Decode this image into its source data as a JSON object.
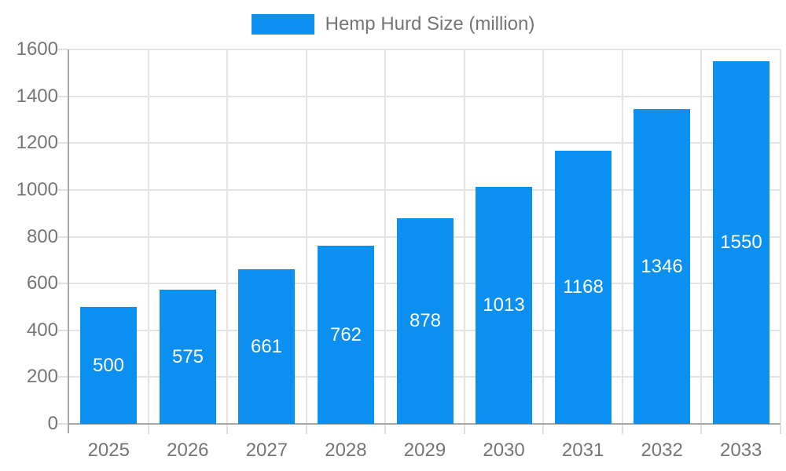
{
  "legend": {
    "label": "Hemp Hurd Size (million)"
  },
  "chart_data": {
    "type": "bar",
    "title": "Hemp Hurd Size (million)",
    "categories": [
      "2025",
      "2026",
      "2027",
      "2028",
      "2029",
      "2030",
      "2031",
      "2032",
      "2033"
    ],
    "values": [
      500,
      575,
      661,
      762,
      878,
      1013,
      1168,
      1346,
      1550
    ],
    "bar_labels": [
      "500",
      "575",
      "661",
      "762",
      "878",
      "1013",
      "1168",
      "1346",
      "1550"
    ],
    "xlabel": "",
    "ylabel": "",
    "ylim": [
      0,
      1600
    ],
    "yticks": [
      0,
      200,
      400,
      600,
      800,
      1000,
      1200,
      1400,
      1600
    ],
    "grid": true,
    "legend_position": "top"
  },
  "colors": {
    "bar": "#0b90f2",
    "bar_label": "#ffffff",
    "grid": "#e3e3e3",
    "axis": "#a6a6a6",
    "tick": "#e0e0e0",
    "text": "#757575"
  }
}
